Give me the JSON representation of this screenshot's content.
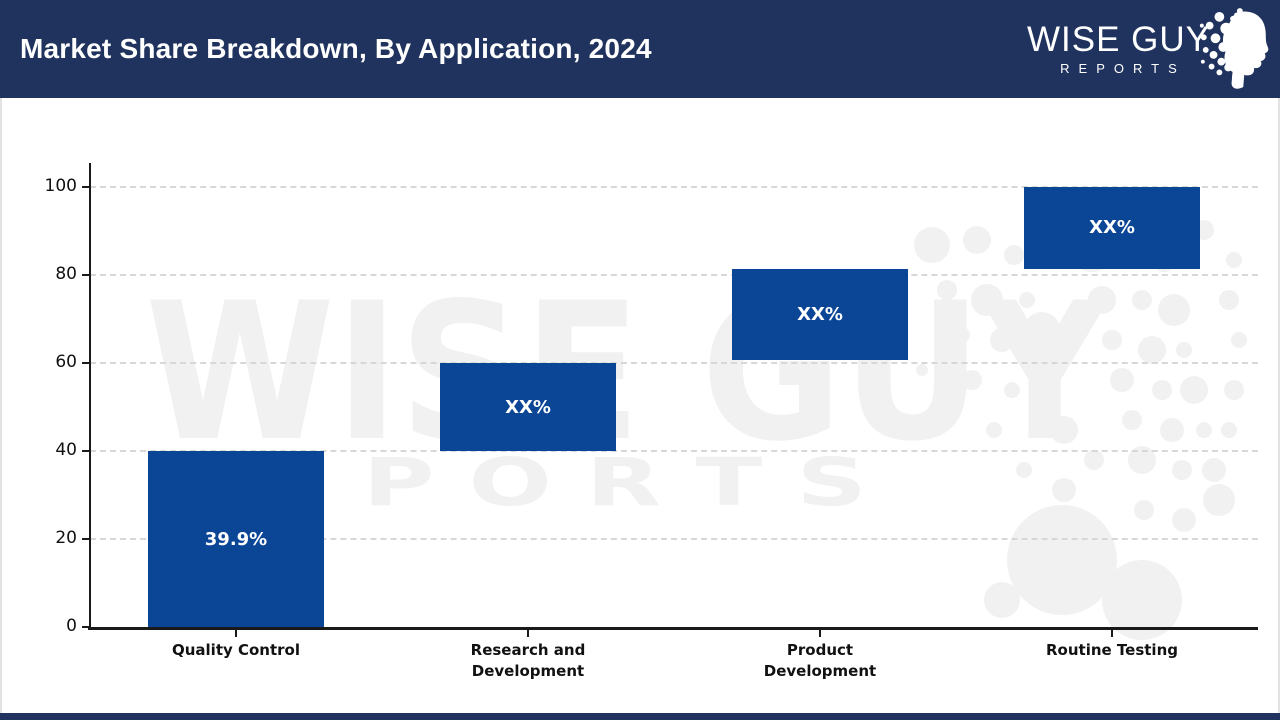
{
  "header": {
    "title": "Market Share Breakdown, By Application, 2024",
    "logo": {
      "line1": "WISE GUY",
      "line2": "REPORTS"
    }
  },
  "watermark": {
    "line1": "WISE GUY",
    "line2": "R E P O R T S"
  },
  "colors": {
    "header_bg": "#20335e",
    "bar": "#0b4596",
    "bar_label": "#ffffff",
    "axis": "#1a1a1a",
    "grid": "#d7d7d7",
    "watermark": "#f1f1f2"
  },
  "chart_data": {
    "type": "bar",
    "subtype": "waterfall",
    "title": "Market Share Breakdown, By Application, 2024",
    "xlabel": "",
    "ylabel": "",
    "ylim": [
      0,
      100
    ],
    "yticks": [
      0,
      20,
      40,
      60,
      80,
      100
    ],
    "grid": "horizontal-dashed",
    "legend": "none",
    "categories": [
      "Quality Control",
      "Research and Development",
      "Product Development",
      "Routine Testing"
    ],
    "bars": [
      {
        "category_lines": [
          "Quality Control"
        ],
        "start": 0,
        "end": 39.9,
        "label": "39.9%"
      },
      {
        "category_lines": [
          "Research and",
          "Development"
        ],
        "start": 39.9,
        "end": 60.0,
        "label": "XX%"
      },
      {
        "category_lines": [
          "Product",
          "Development"
        ],
        "start": 60.7,
        "end": 81.4,
        "label": "XX%"
      },
      {
        "category_lines": [
          "Routine Testing"
        ],
        "start": 81.4,
        "end": 100,
        "label": "XX%"
      }
    ]
  },
  "footer": {}
}
